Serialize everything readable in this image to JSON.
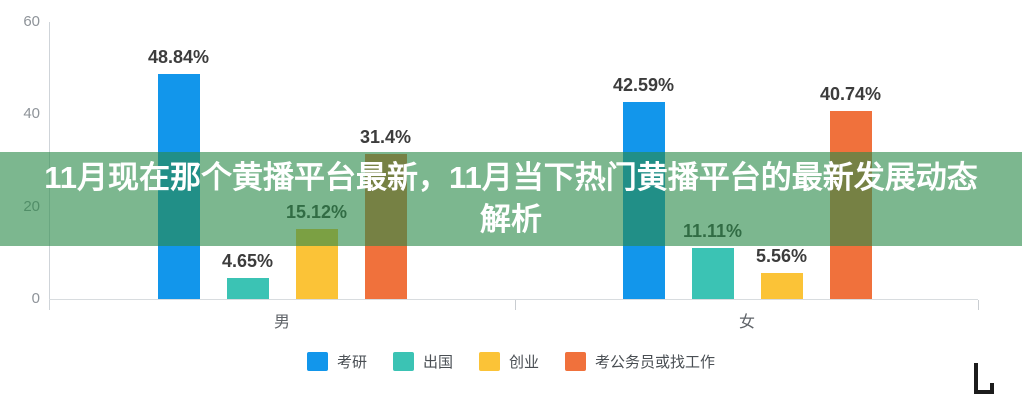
{
  "overlay": {
    "title_line1": "11月现在那个黄播平台最新，11月当下热门黄播平台的最新发展动态",
    "title_line2": "解析",
    "background_rgba": "rgba(44,138,74,0.62)",
    "text_color": "#ffffff"
  },
  "chart_data": {
    "type": "bar",
    "categories": [
      "男",
      "女"
    ],
    "series": [
      {
        "name": "考研",
        "color": "#1296eb",
        "values": [
          48.84,
          42.59
        ],
        "labels": [
          "48.84%",
          "42.59%"
        ]
      },
      {
        "name": "出国",
        "color": "#3bc3b4",
        "values": [
          4.65,
          11.11
        ],
        "labels": [
          "4.65%",
          "11.11%"
        ]
      },
      {
        "name": "创业",
        "color": "#fbc337",
        "values": [
          15.12,
          5.56
        ],
        "labels": [
          "15.12%",
          "5.56%"
        ]
      },
      {
        "name": "考公务员或找工作",
        "color": "#f0713c",
        "values": [
          31.4,
          40.74
        ],
        "labels": [
          "31.4%",
          "40.74%"
        ]
      }
    ],
    "ylabel": "",
    "xlabel": "",
    "ylim": [
      0,
      60
    ],
    "yticks": [
      60,
      40,
      20,
      0
    ],
    "grid": false,
    "legend_position": "bottom"
  },
  "watermark": {
    "glyph": "L"
  }
}
